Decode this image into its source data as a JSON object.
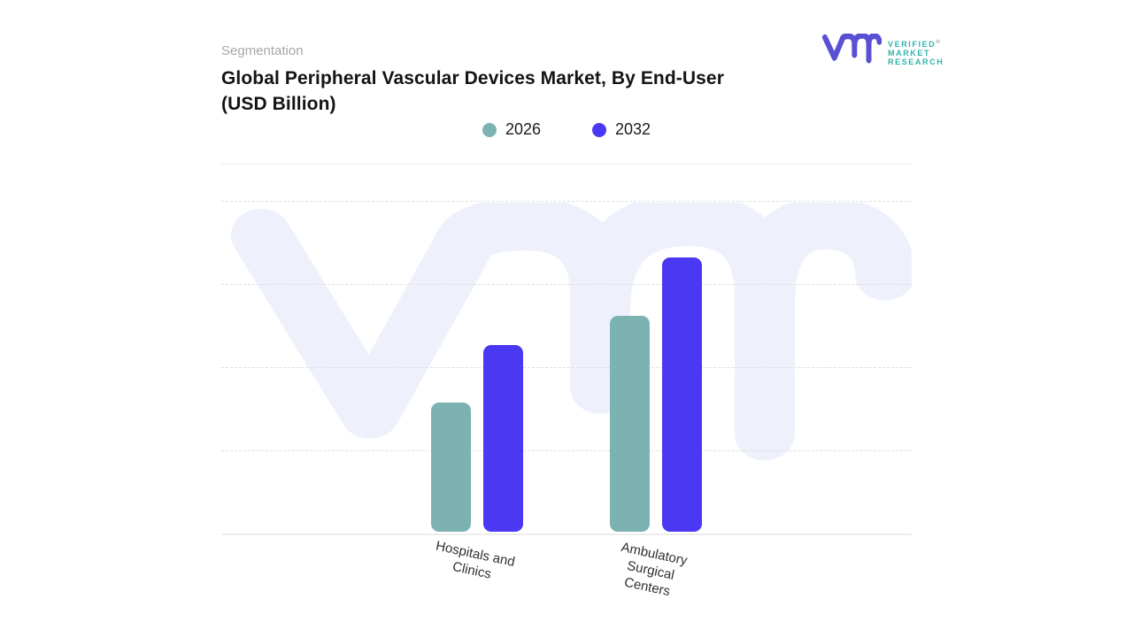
{
  "header": {
    "eyebrow": "Segmentation",
    "title": "Global Peripheral Vascular Devices Market, By End-User (USD Billion)"
  },
  "logo": {
    "name": "Verified Market Research",
    "words": [
      "VERIFIED",
      "MARKET",
      "RESEARCH"
    ],
    "registered_mark": "®",
    "mark_color": "#5a50d4",
    "text_color": "#2fb3ad"
  },
  "chart_data": {
    "type": "bar",
    "title": "Global Peripheral Vascular Devices Market, By End-User (USD Billion)",
    "unit": "USD Billion",
    "categories": [
      "Hospitals and Clinics",
      "Ambulatory Surgical Centers"
    ],
    "series": [
      {
        "name": "2026",
        "color": "#7db2b2",
        "values": [
          1.55,
          2.6
        ]
      },
      {
        "name": "2032",
        "color": "#4b38f2",
        "values": [
          2.25,
          3.3
        ]
      }
    ],
    "ylim": [
      0,
      4
    ],
    "gridline_count": 4,
    "y_tick_labels": [],
    "grid": "dashed-horizontal",
    "legend_position": "top-center",
    "watermark_color": "#eef1fb"
  }
}
